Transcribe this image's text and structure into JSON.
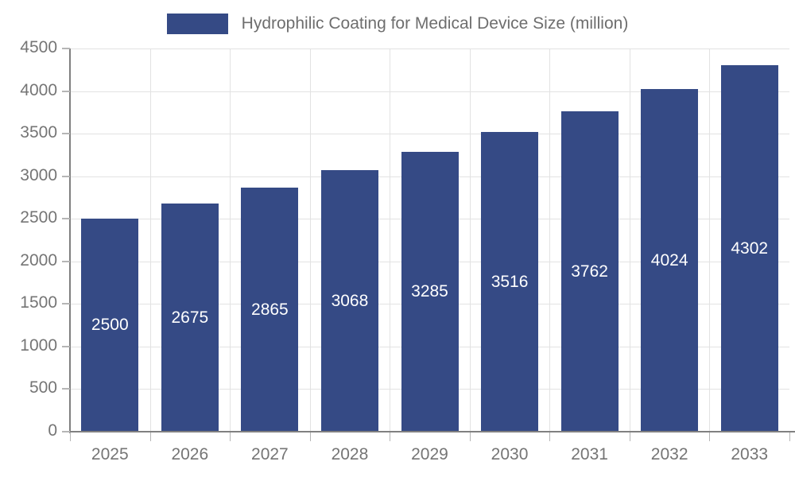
{
  "chart_data": {
    "type": "bar",
    "title": "Hydrophilic Coating for Medical Device Size (million)",
    "categories": [
      "2025",
      "2026",
      "2027",
      "2028",
      "2029",
      "2030",
      "2031",
      "2032",
      "2033"
    ],
    "values": [
      2500,
      2675,
      2865,
      3068,
      3285,
      3516,
      3762,
      4024,
      4302
    ],
    "xlabel": "",
    "ylabel": "",
    "ylim": [
      0,
      4500
    ],
    "y_ticks": [
      0,
      500,
      1000,
      1500,
      2000,
      2500,
      3000,
      3500,
      4000,
      4500
    ],
    "grid": true,
    "legend_position": "top-center",
    "bar_label_position": "center-of-bar",
    "colors": {
      "bar": "#354a85",
      "grid": "#e2e2e2",
      "axis": "#808080",
      "tick": "#b5b5b5",
      "tick_label": "#757575",
      "legend_label": "#6e6e6e",
      "bar_label": "#ffffff",
      "background": "#ffffff"
    }
  }
}
